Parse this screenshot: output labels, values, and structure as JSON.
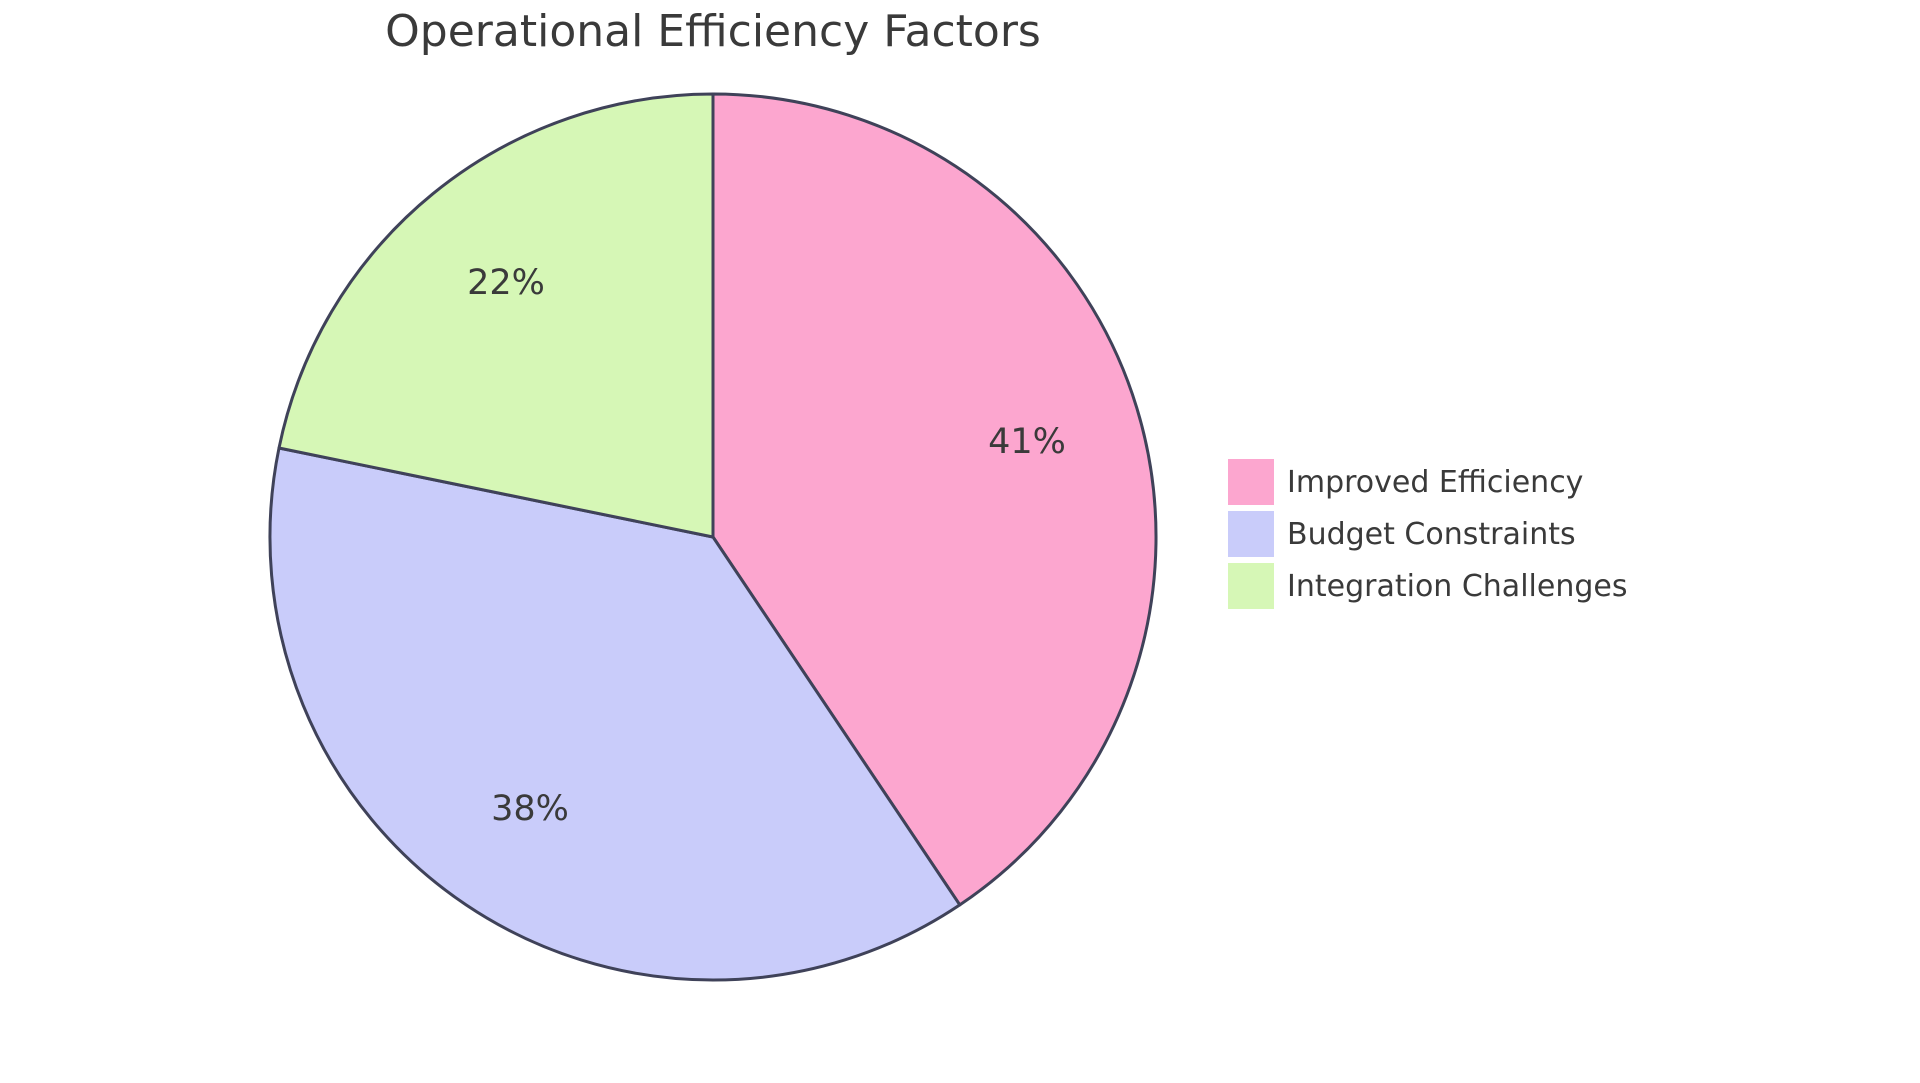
{
  "chart_data": {
    "type": "pie",
    "title": "Operational Efficiency Factors",
    "categories": [
      "Improved Efficiency",
      "Budget Constraints",
      "Integration Challenges"
    ],
    "values": [
      41,
      38,
      22
    ],
    "percent_labels": [
      "41%",
      "38%",
      "22%"
    ],
    "colors": [
      "#FCA6CF",
      "#C9CCFA",
      "#D6F7B6"
    ],
    "stroke_color": "#3F4259",
    "label_color": "#3A3A3A",
    "background": "#FFFFFF",
    "start_angle": "top",
    "direction": "clockwise",
    "legend_position": "right"
  }
}
